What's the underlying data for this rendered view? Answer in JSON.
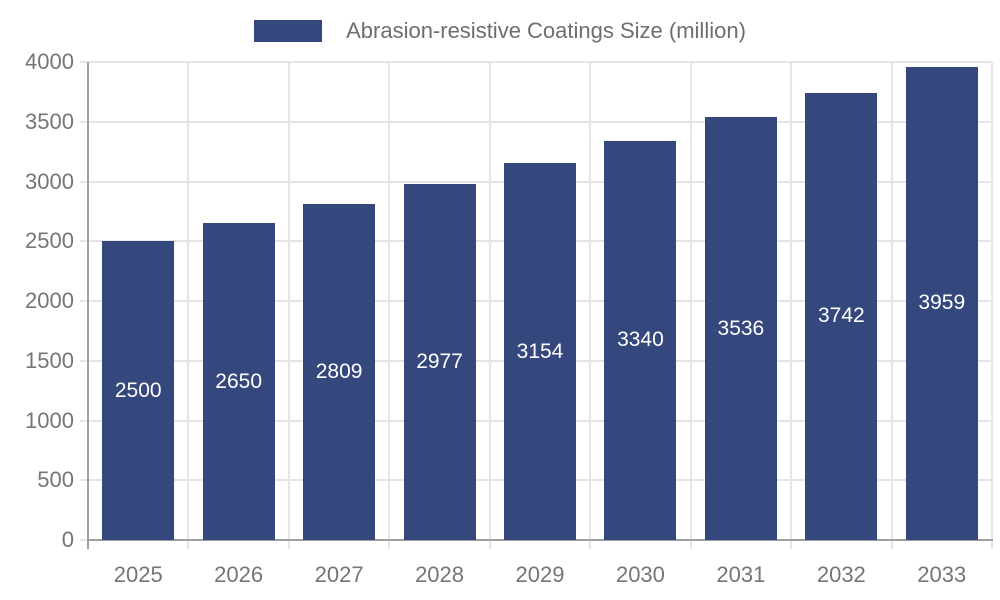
{
  "chart_data": {
    "type": "bar",
    "title": "",
    "legend": "Abrasion-resistive Coatings Size (million)",
    "legend_position": "top-center",
    "categories": [
      "2025",
      "2026",
      "2027",
      "2028",
      "2029",
      "2030",
      "2031",
      "2032",
      "2033"
    ],
    "series": [
      {
        "name": "Abrasion-resistive Coatings Size (million)",
        "values": [
          2500,
          2650,
          2809,
          2977,
          3154,
          3340,
          3536,
          3742,
          3959
        ]
      }
    ],
    "value_labels": "inside-center-white",
    "xlabel": "",
    "ylabel": "",
    "ylim": [
      0,
      4000
    ],
    "yticks": [
      0,
      500,
      1000,
      1500,
      2000,
      2500,
      3000,
      3500,
      4000
    ],
    "grid": true,
    "colors": {
      "bar": "#35487E",
      "value_label": "#FFFFFF",
      "axis_line": "#A0A0A0",
      "gridline": "#E5E5E5",
      "tick_label": "#757575",
      "legend_text": "#6E6E6E",
      "background": "#FFFFFF"
    }
  }
}
